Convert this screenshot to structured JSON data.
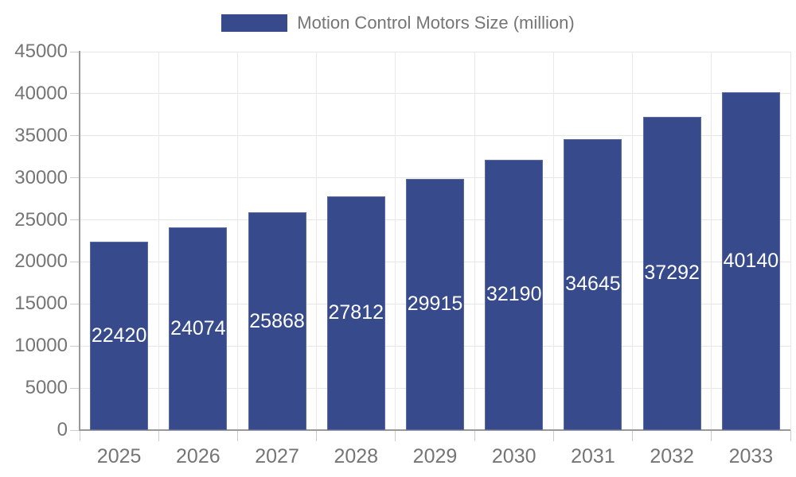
{
  "chart_data": {
    "type": "bar",
    "title": "Motion Control Motors Size (million)",
    "categories": [
      "2025",
      "2026",
      "2027",
      "2028",
      "2029",
      "2030",
      "2031",
      "2032",
      "2033"
    ],
    "values": [
      22420,
      24074,
      25868,
      27812,
      29915,
      32190,
      34645,
      37292,
      40140
    ],
    "xlabel": "",
    "ylabel": "",
    "ylim": [
      0,
      45000
    ],
    "ytick_step": 5000,
    "ytick_labels": [
      "0",
      "5000",
      "10000",
      "15000",
      "20000",
      "25000",
      "30000",
      "35000",
      "40000",
      "45000"
    ],
    "grid": true,
    "legend_position": "top",
    "bar_labels_shown": true,
    "bar_label_position": "center-inside"
  },
  "legend": {
    "label": "Motion Control Motors Size (million)"
  },
  "colors": {
    "bar_fill": "#374A8C",
    "bar_label": "#ffffff",
    "axis_line": "#999999",
    "gridline": "#e6e6e6",
    "tick": "#cccccc",
    "axis_text": "#757575",
    "background": "#ffffff"
  }
}
